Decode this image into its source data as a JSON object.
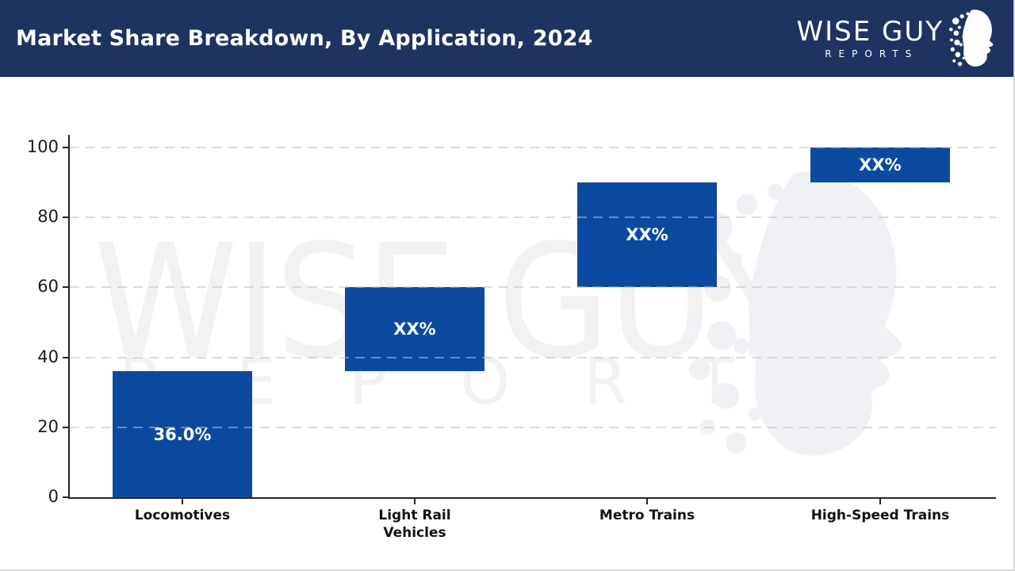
{
  "header": {
    "title": "Market Share Breakdown, By Application, 2024",
    "logo": {
      "line1": "WISE GUY",
      "line2": "REPORTS"
    }
  },
  "watermark": {
    "line1": "WISE GUY",
    "line2": "REPORTS"
  },
  "colors": {
    "header_bg": "#1e3361",
    "bar": "#0c4aa0",
    "bar_label": "#ffffff",
    "axis": "#262626",
    "grid": "#d6d6d6",
    "watermark": "#f1f2f4"
  },
  "chart_data": {
    "type": "bar",
    "subtype": "waterfall-floating-bars",
    "title": "Market Share Breakdown, By Application, 2024",
    "categories": [
      "Locomotives",
      "Light Rail\nVehicles",
      "Metro Trains",
      "High-Speed Trains"
    ],
    "series": [
      {
        "name": "Market Share (%)",
        "segments": [
          {
            "category": "Locomotives",
            "start": 0,
            "end": 36,
            "label": "36.0%"
          },
          {
            "category": "Light Rail Vehicles",
            "start": 36,
            "end": 60,
            "label": "XX%"
          },
          {
            "category": "Metro Trains",
            "start": 60,
            "end": 90,
            "label": "XX%"
          },
          {
            "category": "High-Speed Trains",
            "start": 90,
            "end": 100,
            "label": "XX%"
          }
        ]
      }
    ],
    "xlabel": "",
    "ylabel": "",
    "ylim": [
      0,
      100
    ],
    "yticks": [
      0,
      20,
      40,
      60,
      80,
      100
    ],
    "grid": "horizontal-dashed",
    "legend": "none"
  }
}
